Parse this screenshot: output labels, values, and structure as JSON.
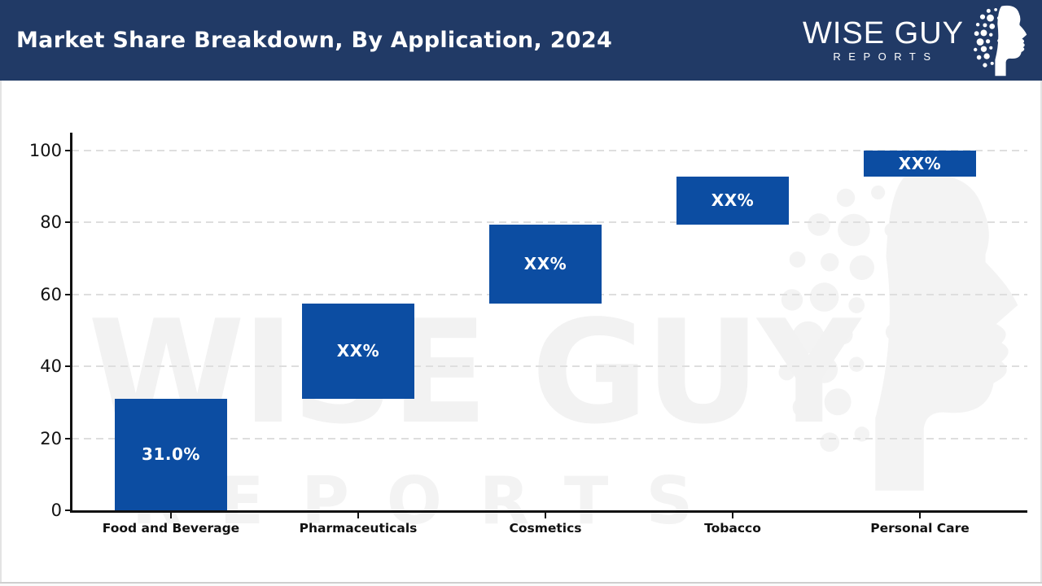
{
  "header": {
    "title": "Market Share Breakdown, By Application, 2024",
    "logo": {
      "line1": "WISE GUY",
      "line2": "REPORTS"
    }
  },
  "watermark": {
    "line1": "WISE GUY",
    "line2": "REPORTS"
  },
  "colors": {
    "header_bg": "#213a66",
    "bar_blue": "#0c4da2",
    "watermark_gray": "#f2f2f2",
    "gridline_gray": "#dedede",
    "axis_black": "#111111",
    "value_label_white": "#ffffff"
  },
  "chart_data": {
    "type": "bar",
    "variant": "waterfall",
    "title": "Market Share Breakdown, By Application, 2024",
    "xlabel": "",
    "ylabel": "",
    "categories": [
      "Food and Beverage",
      "Pharmaceuticals",
      "Cosmetics",
      "Tobacco",
      "Personal Care"
    ],
    "segments": [
      {
        "category": "Food and Beverage",
        "start": 0,
        "end": 31.0,
        "value": 31.0,
        "label": "31.0%"
      },
      {
        "category": "Pharmaceuticals",
        "start": 31.0,
        "end": 57.5,
        "value": 26.5,
        "label": "XX%"
      },
      {
        "category": "Cosmetics",
        "start": 57.5,
        "end": 79.5,
        "value": 22.0,
        "label": "XX%"
      },
      {
        "category": "Tobacco",
        "start": 79.5,
        "end": 92.8,
        "value": 13.3,
        "label": "XX%"
      },
      {
        "category": "Personal Care",
        "start": 92.8,
        "end": 100.0,
        "value": 7.2,
        "label": "XX%"
      }
    ],
    "yticks": [
      0,
      20,
      40,
      60,
      80,
      100
    ],
    "ylim": [
      0,
      105
    ],
    "grid": "horizontal-dashed",
    "legend": "none",
    "bar_color": "#0c4da2"
  }
}
